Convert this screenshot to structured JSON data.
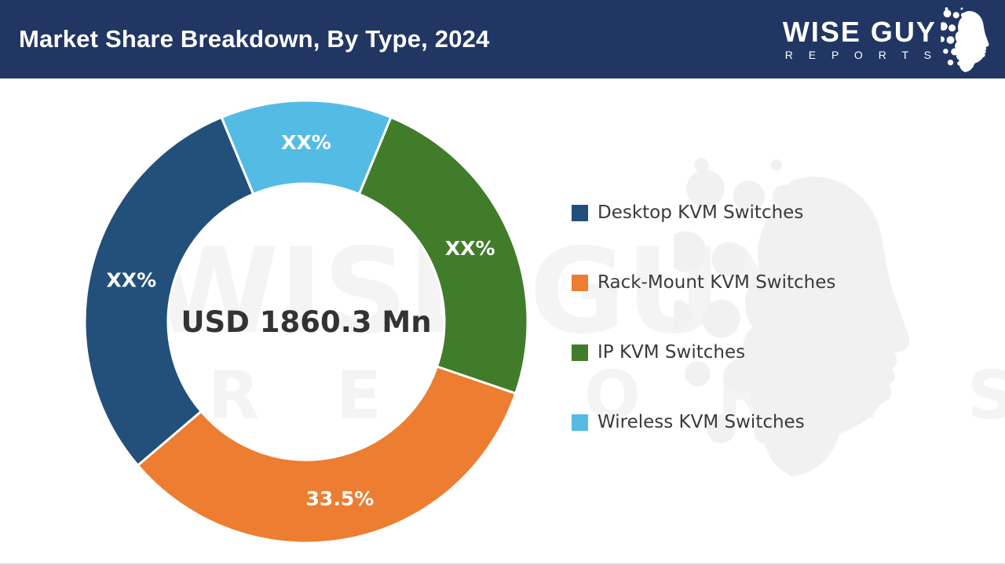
{
  "header": {
    "title": "Market Share Breakdown, By Type, 2024",
    "bg_color": "#213663",
    "logo": {
      "line1": "WISE GUY",
      "line2": "R E P O R T S"
    }
  },
  "watermark": {
    "line1": "WISE GUY",
    "line2": "R E P O R T S"
  },
  "chart_data": {
    "type": "donut",
    "title": "Market Share Breakdown, By Type, 2024",
    "center_label": "USD 1860.3 Mn",
    "legend_position": "right",
    "start_angle_clock_deg": -22.5,
    "segments": [
      {
        "name": "Desktop KVM Switches",
        "label": "XX%",
        "value_pct": 30.0,
        "color": "#23507A"
      },
      {
        "name": "Rack-Mount KVM Switches",
        "label": "33.5%",
        "value_pct": 33.5,
        "color": "#ED7D31"
      },
      {
        "name": "IP KVM Switches",
        "label": "XX%",
        "value_pct": 24.0,
        "color": "#417C2B"
      },
      {
        "name": "Wireless KVM Switches",
        "label": "XX%",
        "value_pct": 12.5,
        "color": "#54BCE4"
      }
    ]
  }
}
